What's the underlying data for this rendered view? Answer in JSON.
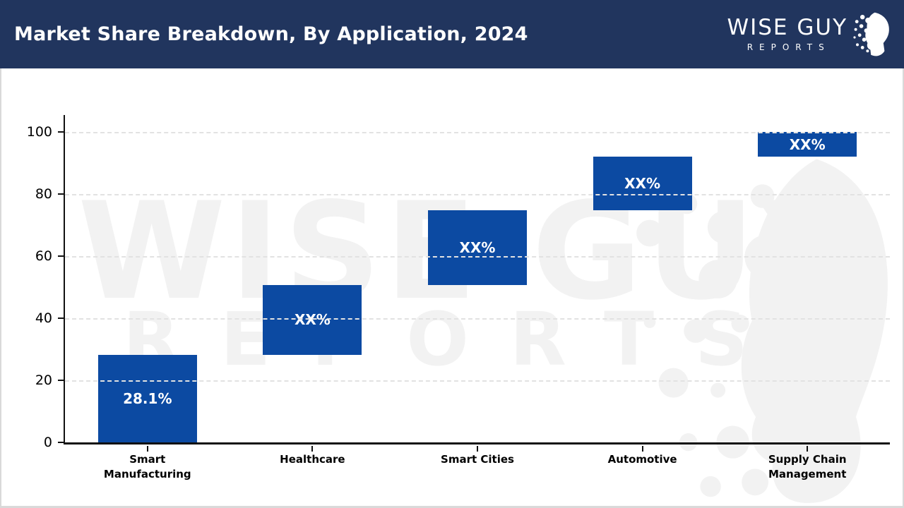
{
  "header": {
    "title": "Market Share Breakdown, By Application, 2024",
    "logo": {
      "wordmark": "WISE GUY",
      "subtext": "REPORTS"
    }
  },
  "watermark": {
    "line1": "WISE GUY",
    "line2": "REPORTS"
  },
  "colors": {
    "header_bg": "#21355e",
    "bar": "#0c4aa2",
    "grid": "#e2e2e2",
    "axis": "#111111",
    "bar_label": "#ffffff",
    "tick_label": "#000000",
    "watermark": "#f2f2f2",
    "page_border": "#d9d9d9"
  },
  "chart_data": {
    "type": "bar",
    "subtype": "waterfall",
    "title": "Market Share Breakdown, By Application, 2024",
    "unit": "%",
    "categories": [
      "Smart Manufacturing",
      "Healthcare",
      "Smart Cities",
      "Automotive",
      "Supply Chain Management"
    ],
    "segments": [
      {
        "category": "Smart Manufacturing",
        "display": "Smart\nManufacturing",
        "start": 0,
        "end": 28.1,
        "label": "28.1%"
      },
      {
        "category": "Healthcare",
        "display": "Healthcare",
        "start": 28.1,
        "end": 50.8,
        "label": "XX%"
      },
      {
        "category": "Smart Cities",
        "display": "Smart Cities",
        "start": 50.8,
        "end": 74.9,
        "label": "XX%"
      },
      {
        "category": "Automotive",
        "display": "Automotive",
        "start": 74.9,
        "end": 92.0,
        "label": "XX%"
      },
      {
        "category": "Supply Chain Management",
        "display": "Supply Chain\nManagement",
        "start": 92.0,
        "end": 100.0,
        "label": "XX%"
      }
    ],
    "y_ticks": [
      0,
      20,
      40,
      60,
      80,
      100
    ],
    "ylim": [
      0,
      105.5
    ],
    "bar_width_fraction": 0.6,
    "grid": "horizontal-dashed",
    "legend": "none"
  }
}
